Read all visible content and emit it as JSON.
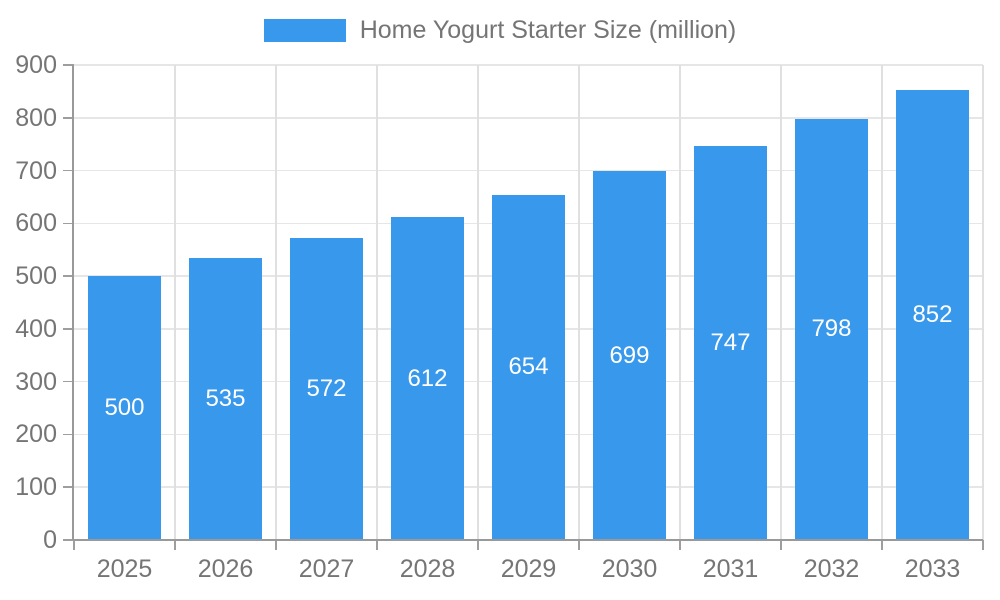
{
  "chart_data": {
    "type": "bar",
    "title": "Home Yogurt Starter Size (million)",
    "categories": [
      "2025",
      "2026",
      "2027",
      "2028",
      "2029",
      "2030",
      "2031",
      "2032",
      "2033"
    ],
    "values": [
      500,
      535,
      572,
      612,
      654,
      699,
      747,
      798,
      852
    ],
    "xlabel": "",
    "ylabel": "",
    "ylim": [
      0,
      900
    ],
    "y_ticks": [
      0,
      100,
      200,
      300,
      400,
      500,
      600,
      700,
      800,
      900
    ],
    "grid": true,
    "value_labels": "inside-center",
    "legend": {
      "label": "Home Yogurt Starter Size (million)",
      "position": "top-center"
    },
    "colors": {
      "bar": "#3898EC",
      "value_label": "#FFFFFF",
      "axis_label": "#757575",
      "grid_line": "#E6E6E6",
      "grid_line_v": "#E0E0E0",
      "tick": "#9E9E9E",
      "axis_line": "#999999",
      "background": "#FFFFFF"
    }
  }
}
